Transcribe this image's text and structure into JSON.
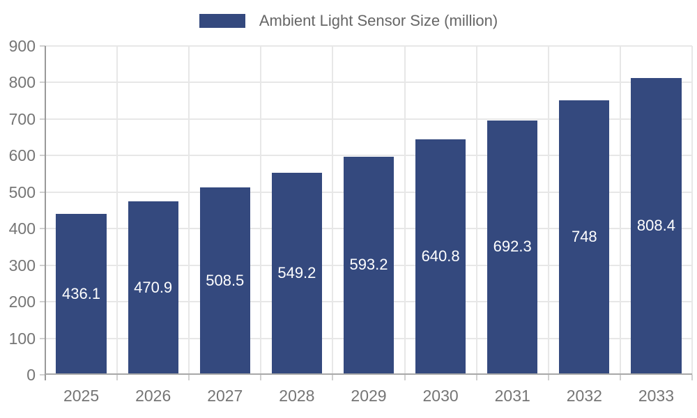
{
  "chart_data": {
    "type": "bar",
    "title": "Ambient Light Sensor Size (million)",
    "categories": [
      "2025",
      "2026",
      "2027",
      "2028",
      "2029",
      "2030",
      "2031",
      "2032",
      "2033"
    ],
    "values": [
      436.1,
      470.9,
      508.5,
      549.2,
      593.2,
      640.8,
      692.3,
      748,
      808.4
    ],
    "value_labels": [
      "436.1",
      "470.9",
      "508.5",
      "549.2",
      "593.2",
      "640.8",
      "692.3",
      "748",
      "808.4"
    ],
    "xlabel": "",
    "ylabel": "",
    "ylim": [
      0,
      900
    ],
    "ytick_step": 100,
    "grid": "on",
    "legend_position": "top-center",
    "colors": {
      "bar": "#34497E",
      "bar_label": "#ffffff",
      "gridline": "#e7e7e7",
      "tick_label": "#757575",
      "legend_text": "#666666"
    }
  }
}
